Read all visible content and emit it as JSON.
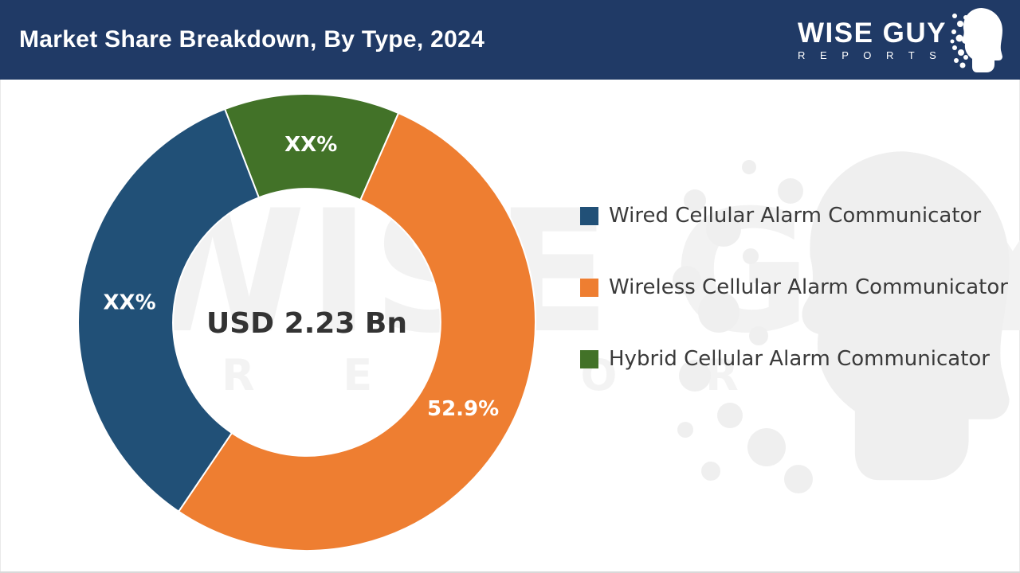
{
  "header": {
    "title": "Market Share Breakdown, By Type, 2024",
    "bg_color": "#203A66",
    "logo": {
      "name_line": "WISE GUY",
      "sub_line": "R E P O R T S"
    }
  },
  "watermark": {
    "big_text": "WISE GUY",
    "sub_text": "R E P O R T S"
  },
  "chart_data": {
    "type": "pie",
    "subtype": "donut",
    "title": "Market Share Breakdown, By Type, 2024",
    "center_label": "USD 2.23 Bn",
    "inner_radius_ratio": 0.585,
    "start_angle_deg": -21,
    "draw_order": [
      2,
      1,
      0
    ],
    "legend_position": "right",
    "label_color": "#ffffff",
    "series": [
      {
        "name": "Wired Cellular Alarm Communicator",
        "value": 34.7,
        "display_label": "XX%",
        "color": "#215077"
      },
      {
        "name": "Wireless Cellular Alarm Communicator",
        "value": 52.9,
        "display_label": "52.9%",
        "color": "#EE7E31"
      },
      {
        "name": "Hybrid Cellular Alarm Communicator",
        "value": 12.4,
        "display_label": "XX%",
        "color": "#427228"
      }
    ]
  },
  "footer": {
    "divider_color": "#D9D9D9"
  }
}
